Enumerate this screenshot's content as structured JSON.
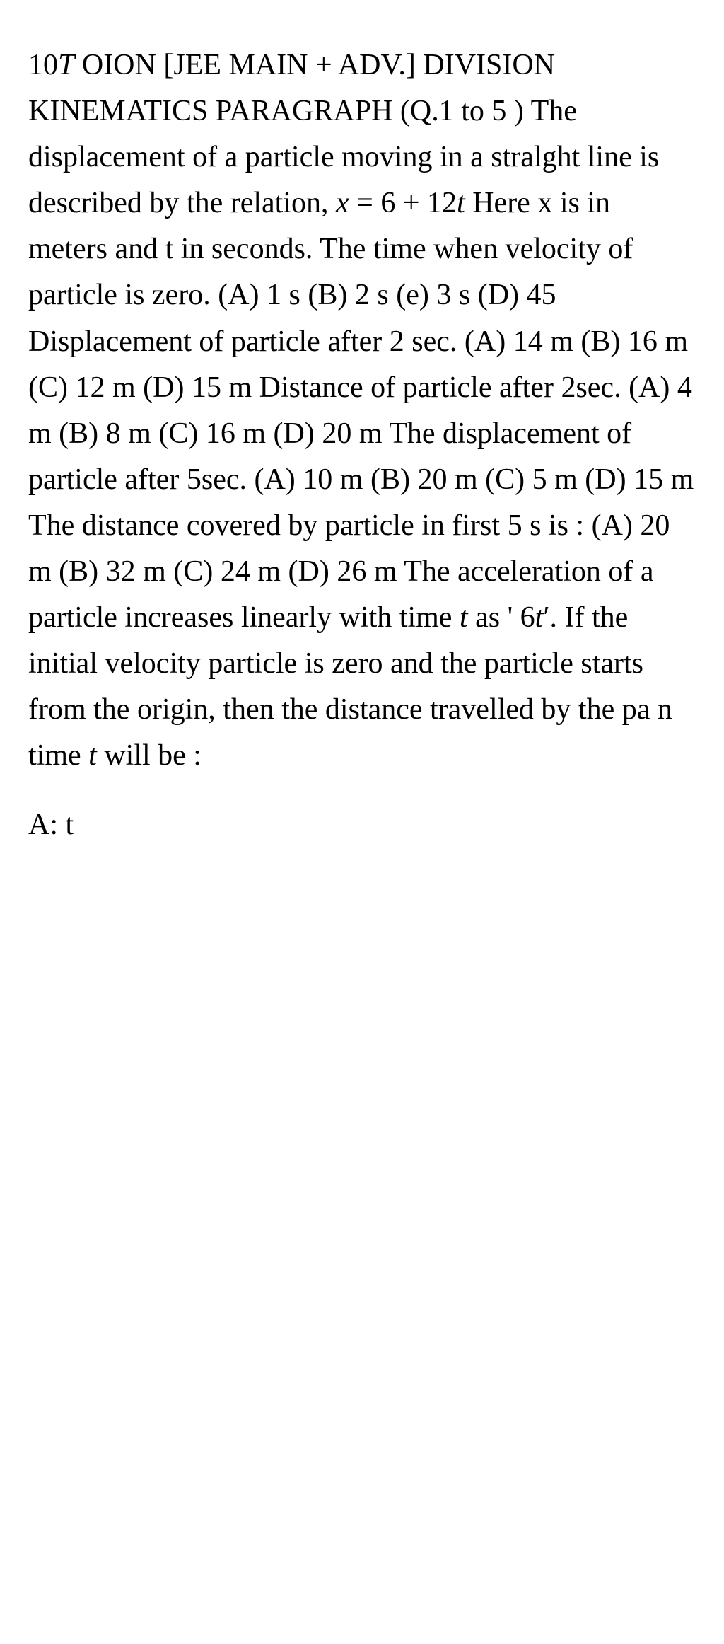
{
  "content": {
    "header_prefix": "10",
    "header_prefixvar": "T",
    "header_rest": " OION [JEE MAIN + ADV.]",
    "body_part1": "DIVISION KINEMATICS PARAGRAPH (Q.1 to 5 ) The displacement of a particle moving in a stralght line is described by the relation, ",
    "equation_x": "x",
    "equation_eq": " = 6 + 12",
    "equation_t": "t",
    "body_part2": " Here ",
    "body_x2": "x",
    "body_part3": " is in meters and ",
    "body_t2": "t",
    "body_part4": " in seconds. The time when velocity of particle is zero. (A) ",
    "serif_1s": "1 s",
    "body_part5": " (B) ",
    "serif_2s": "2 s",
    "body_part6": " (e) ",
    "serif_3s": "3 s",
    "body_part7": " (D) ",
    "serif_45": "45",
    "body_part8": " Displacement of particle after 2 sec. (A) ",
    "serif_14m": "14 m",
    "body_part9": " (B) ",
    "serif_16m": "16 m",
    "body_part10": " (C) ",
    "serif_12m": "12 m",
    "body_part11": " (D) ",
    "serif_15m": "15 m",
    "body_part12": " Distance of particle after ",
    "serif_2sec": "2",
    "body_part12b": "sec. (A) ",
    "serif_4m": "4 m",
    "body_part13": " (B) ",
    "serif_8m": "8 m",
    "body_part14": " (C) ",
    "serif_16m2": "16 m",
    "body_part15": " (D) ",
    "serif_20m": "20 m",
    "body_part16": " The displacement of particle after ",
    "serif_5sec": "5",
    "body_part16b": "sec. (A) ",
    "serif_10m": "10 m",
    "body_part17": " (B) ",
    "serif_20m2": "20 m",
    "body_part18": " (C) ",
    "serif_5m": "5 m",
    "body_part19": " (D) ",
    "serif_15m2": "15 m",
    "body_part20": " The distance covered by particle in first ",
    "serif_5s": "5 s",
    "body_part21": " is : (A) ",
    "serif_20m3": "20 m",
    "body_part22": " (B) ",
    "serif_32m": "32 m",
    "body_part23": " (C) ",
    "serif_24m": "24 m",
    "body_part24": " (D) ",
    "serif_26m": "26 m",
    "body_part25": " The acceleration of a particle increases linearly with time ",
    "var_t3": "t",
    "body_part26": " as ' ",
    "serif_6t": "6",
    "var_t4": "t",
    "prime_sym": "′",
    "body_part27": ". If the initial velocity particle is zero and the particle starts from the origin, then the distance travelled by the pa n time ",
    "var_t5": "t",
    "body_part28": " will be :",
    "answer_label": "A: ",
    "answer_value": "t"
  }
}
